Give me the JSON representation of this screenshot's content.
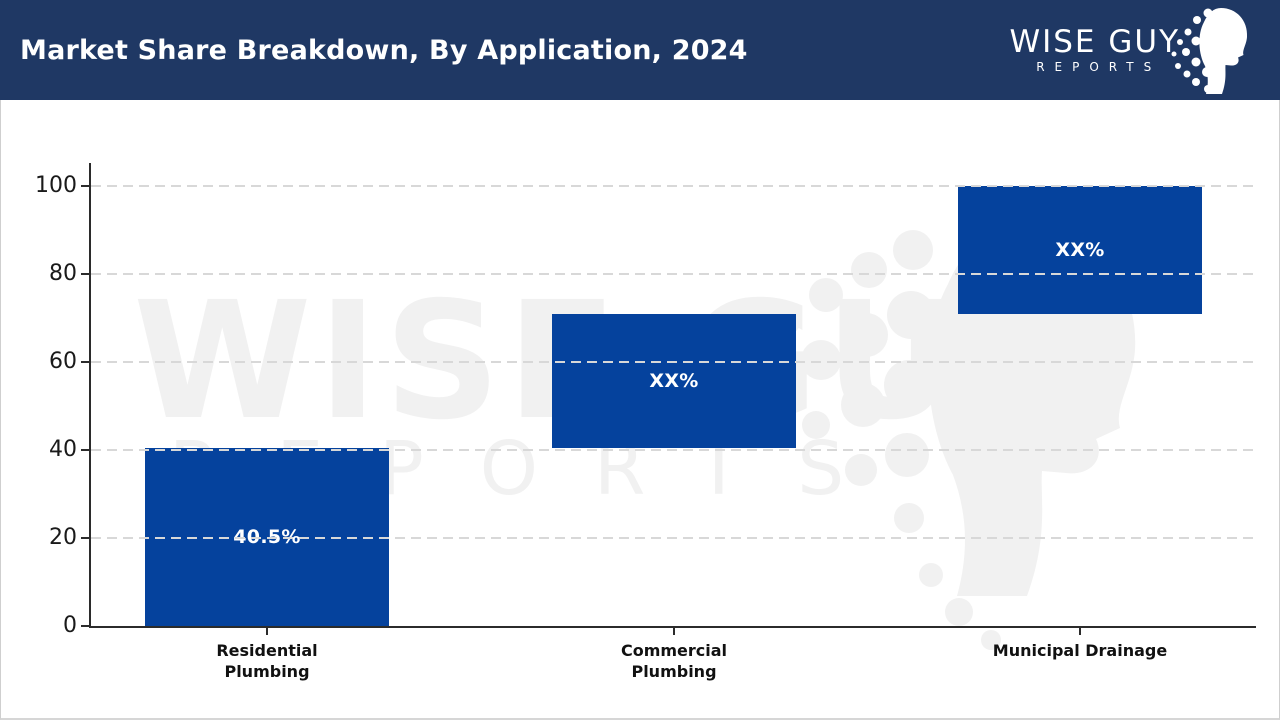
{
  "header": {
    "title": "Market Share Breakdown, By Application, 2024",
    "logo": {
      "line1": "WISE GUY",
      "line2": "REPORTS"
    }
  },
  "watermark": {
    "line1": "WISE GUY",
    "line2": "REPORTS"
  },
  "colors": {
    "header_bg": "#1f3864",
    "title_text": "#ffffff",
    "page_bg": "#ffffff",
    "bar": "#05429d",
    "axis": "#2b2b2b",
    "grid": "#d8d8d8",
    "value_label": "#ffffff",
    "watermark": "#f1f1f1"
  },
  "chart_data": {
    "type": "bar",
    "subtype": "floating-cumulative-bars",
    "title": "Market Share Breakdown, By Application, 2024",
    "categories": [
      "Residential Plumbing",
      "Commercial Plumbing",
      "Municipal Drainage"
    ],
    "bars": [
      {
        "category": "Residential Plumbing",
        "start": 0,
        "end": 40.5,
        "label": "40.5%"
      },
      {
        "category": "Commercial Plumbing",
        "start": 40.5,
        "end": 71,
        "label": "XX%"
      },
      {
        "category": "Municipal Drainage",
        "start": 71,
        "end": 100,
        "label": "XX%"
      }
    ],
    "xlabels": [
      {
        "line1": "Residential",
        "line2": "Plumbing"
      },
      {
        "line1": "Commercial",
        "line2": "Plumbing"
      },
      {
        "line1": "Municipal Drainage",
        "line2": ""
      }
    ],
    "yticks": [
      0,
      20,
      40,
      60,
      80,
      100
    ],
    "ylim": [
      0,
      100
    ],
    "xlabel": "",
    "ylabel": "",
    "grid": "horizontal-dashed",
    "legend": "none"
  }
}
